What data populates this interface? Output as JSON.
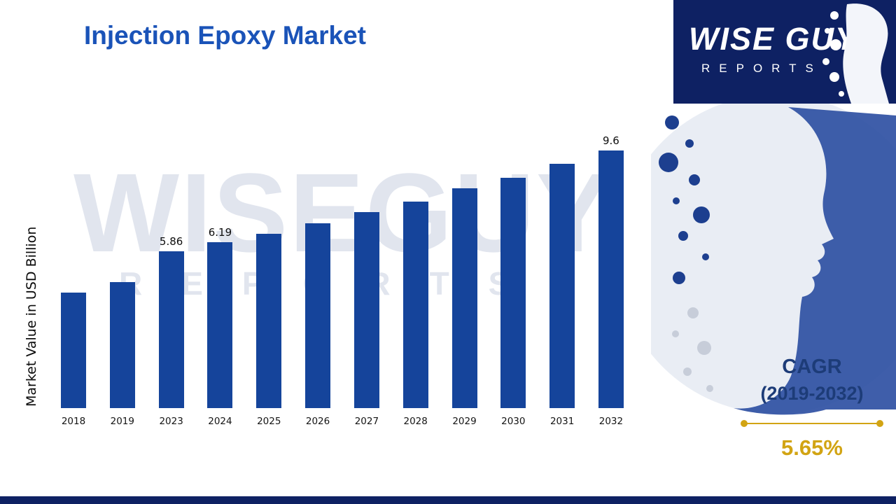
{
  "title": "Injection Epoxy Market",
  "watermark": {
    "line1": "WISEGUY",
    "line2": "REPORTS"
  },
  "logo": {
    "line1": "WISE GUY",
    "line2": "REPORTS"
  },
  "cagr": {
    "label": "CAGR",
    "range": "(2019-2032)",
    "value": "5.65%"
  },
  "colors": {
    "bar": "#15449b",
    "title_blue": "#1a53b8",
    "navy_panel": "#0e2163",
    "gold_accent": "#d2a413",
    "cagr_navy": "#1d3c78",
    "watermark_gray": "#e1e5ee"
  },
  "chart_data": {
    "type": "bar",
    "title": "Injection Epoxy Market",
    "xlabel": "",
    "ylabel": "Market Value in USD Billion",
    "unit": "USD Billion",
    "categories": [
      "2018",
      "2019",
      "2023",
      "2024",
      "2025",
      "2026",
      "2027",
      "2028",
      "2029",
      "2030",
      "2031",
      "2032"
    ],
    "values": [
      4.3,
      4.7,
      5.86,
      6.19,
      6.5,
      6.9,
      7.3,
      7.7,
      8.2,
      8.6,
      9.1,
      9.6
    ],
    "data_labels": [
      "",
      "",
      "5.86",
      "6.19",
      "",
      "",
      "",
      "",
      "",
      "",
      "",
      "9.6"
    ],
    "ylim": [
      0,
      10
    ],
    "grid": false,
    "legend": false,
    "bar_color": "#15449b"
  }
}
